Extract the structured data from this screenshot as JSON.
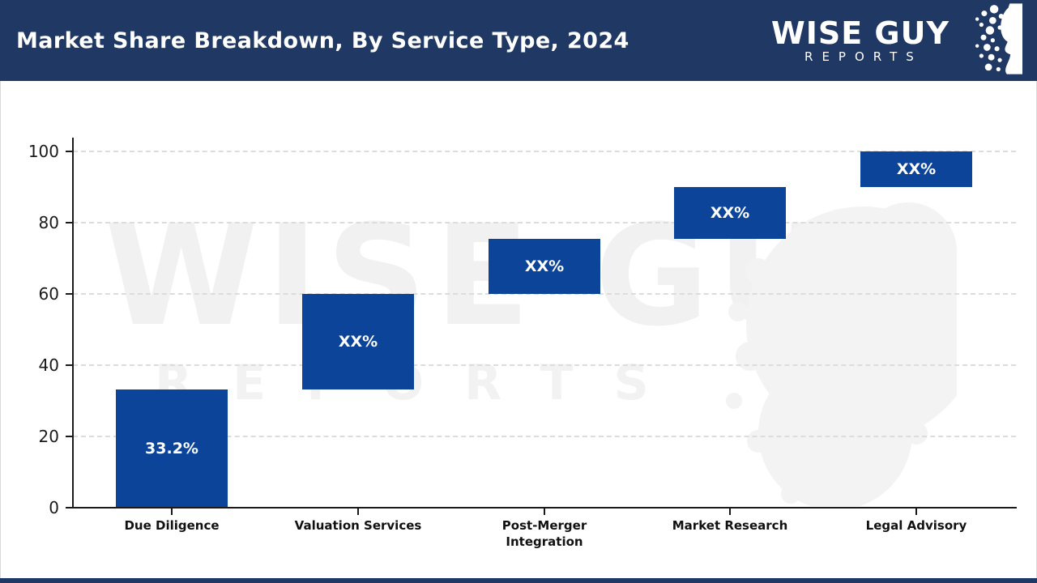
{
  "header": {
    "title": "Market Share Breakdown, By Service Type, 2024",
    "logo_line1": "WISE GUY",
    "logo_line2": "REPORTS"
  },
  "watermark": {
    "line1": "WISE GUY",
    "line2": "REPORTS"
  },
  "colors": {
    "header_navy": "#1f3864",
    "bar_blue": "#0b4499",
    "bar_label_white": "#ffffff",
    "gridline_gray": "#dcdcdc",
    "watermark_gray": "#f1f1f1"
  },
  "chart_data": {
    "type": "bar",
    "subtype": "waterfall",
    "title": "Market Share Breakdown, By Service Type, 2024",
    "xlabel": "",
    "ylabel": "",
    "ylim": [
      0,
      100
    ],
    "yticks": [
      0,
      20,
      40,
      60,
      80,
      100
    ],
    "grid": "horizontal-dashed",
    "legend": "none",
    "bar_color": "#0b4499",
    "categories": [
      "Due Diligence",
      "Valuation Services",
      "Post-Merger Integration",
      "Market Research",
      "Legal Advisory"
    ],
    "segments": [
      {
        "category": "Due Diligence",
        "start": 0,
        "end": 33.2,
        "increment": 33.2,
        "label": "33.2%"
      },
      {
        "category": "Valuation Services",
        "start": 33.2,
        "end": 60,
        "increment": 26.8,
        "label": "XX%"
      },
      {
        "category": "Post-Merger Integration",
        "start": 60,
        "end": 75.5,
        "increment": 15.5,
        "label": "XX%"
      },
      {
        "category": "Market Research",
        "start": 75.5,
        "end": 90,
        "increment": 14.5,
        "label": "XX%"
      },
      {
        "category": "Legal Advisory",
        "start": 90,
        "end": 100,
        "increment": 10,
        "label": "XX%"
      }
    ]
  }
}
